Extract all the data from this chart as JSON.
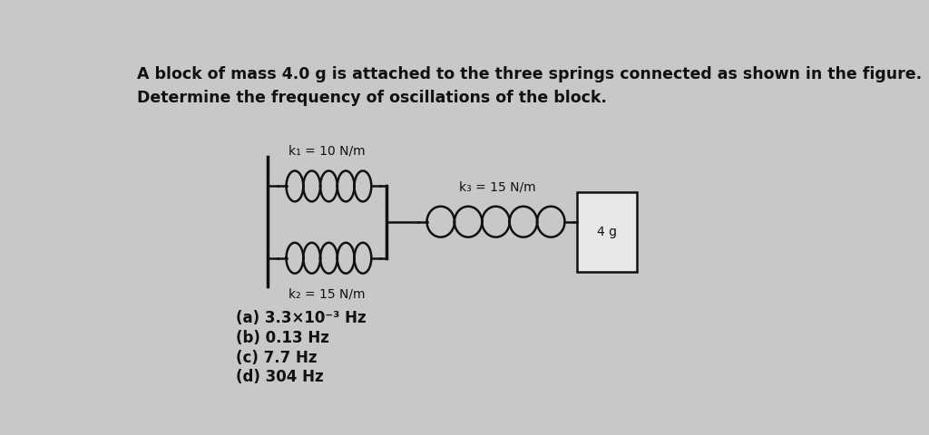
{
  "background_color": "#c8c8c8",
  "title_text": "A block of mass 4.0 g is attached to the three springs connected as shown in the figure.\nDetermine the frequency of oscillations of the block.",
  "title_fontsize": 12.5,
  "spring1_label": "k₁ = 10 N/m",
  "spring2_label": "k₂ = 15 N/m",
  "spring3_label": "k₃ = 15 N/m",
  "mass_label": "4 g",
  "answers": [
    "(a) 3.3×10⁻³ Hz",
    "(b) 0.13 Hz",
    "(c) 7.7 Hz",
    "(d) 304 Hz"
  ],
  "answer_fontsize": 12,
  "wall_color": "#111111",
  "spring_color": "#111111",
  "line_color": "#111111",
  "mass_facecolor": "#e8e8e8",
  "text_color": "#111111",
  "bg_panel_color": "#dcdcdc"
}
